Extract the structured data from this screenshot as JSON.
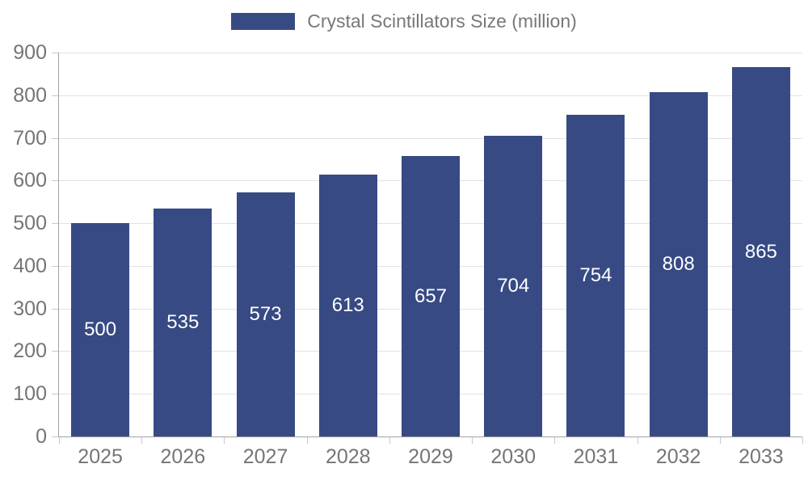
{
  "chart_data": {
    "type": "bar",
    "title": "Crystal Scintillators Size (million)",
    "legend": {
      "label": "Crystal Scintillators Size (million)",
      "position": "top"
    },
    "categories": [
      "2025",
      "2026",
      "2027",
      "2028",
      "2029",
      "2030",
      "2031",
      "2032",
      "2033"
    ],
    "series": [
      {
        "name": "Crystal Scintillators Size (million)",
        "values": [
          500,
          535,
          573,
          613,
          657,
          704,
          754,
          808,
          865
        ]
      }
    ],
    "xlabel": "",
    "ylabel": "",
    "ylim": [
      0,
      900
    ],
    "ytick_interval": 100,
    "yticks": [
      0,
      100,
      200,
      300,
      400,
      500,
      600,
      700,
      800,
      900
    ],
    "grid": true,
    "value_labels_position": "inside-center",
    "colors": {
      "bar": "#374a84",
      "value_label": "#ffffff",
      "axis_label": "#757575",
      "legend_text": "#787878",
      "gridline": "#e3e3e3",
      "axis_line": "#a3a3a3",
      "tick": "#c9c9c9",
      "background": "#ffffff"
    }
  }
}
